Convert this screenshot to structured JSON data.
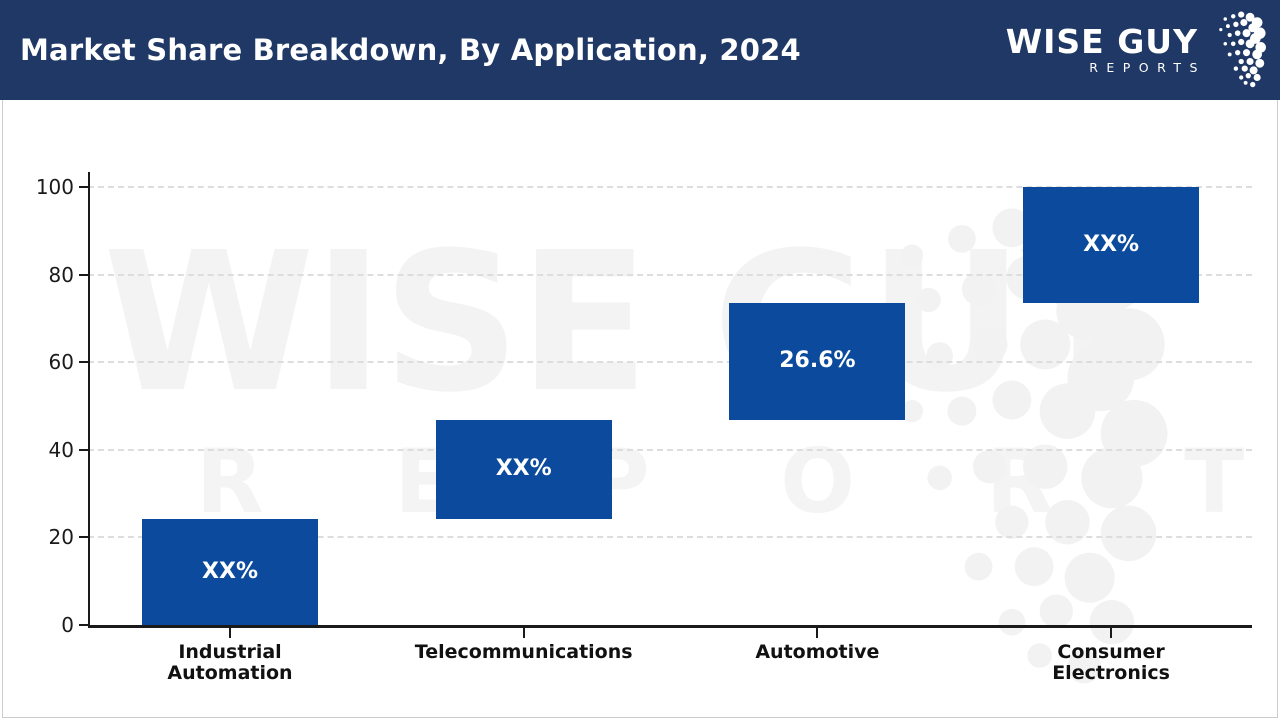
{
  "header": {
    "title": "Market Share Breakdown, By Application, 2024",
    "logo": {
      "line1": "WISE GUY",
      "line2": "REPORTS"
    }
  },
  "watermark": {
    "line1": "WISE GUY",
    "line2": "R E P O R T S"
  },
  "colors": {
    "header_bg": "#1f3866",
    "bar": "#0b4a9c",
    "grid": "#dddddd",
    "axis": "#1a1a1a",
    "bar_label_text": "#ffffff",
    "watermark": "#f3f3f3",
    "card_edge": "#cccccc"
  },
  "chart_data": {
    "type": "bar",
    "subtype": "floating-waterfall",
    "title": "Market Share Breakdown, By Application, 2024",
    "categories": [
      "Industrial Automation",
      "Telecommunications",
      "Automotive",
      "Consumer Electronics"
    ],
    "category_lines": [
      [
        "Industrial",
        "Automation"
      ],
      [
        "Telecommunications"
      ],
      [
        "Automotive"
      ],
      [
        "Consumer",
        "Electronics"
      ]
    ],
    "bars": [
      {
        "category": "Industrial Automation",
        "start": 0,
        "end": 24.2,
        "label": "XX%"
      },
      {
        "category": "Telecommunications",
        "start": 24.2,
        "end": 46.9,
        "label": "XX%"
      },
      {
        "category": "Automotive",
        "start": 46.9,
        "end": 73.5,
        "label": "26.6%"
      },
      {
        "category": "Consumer Electronics",
        "start": 73.5,
        "end": 100,
        "label": "XX%"
      }
    ],
    "ylim": [
      0,
      100
    ],
    "yticks": [
      0,
      20,
      40,
      60,
      80,
      100
    ],
    "grid": "horizontal-dashed",
    "legend": "none"
  }
}
